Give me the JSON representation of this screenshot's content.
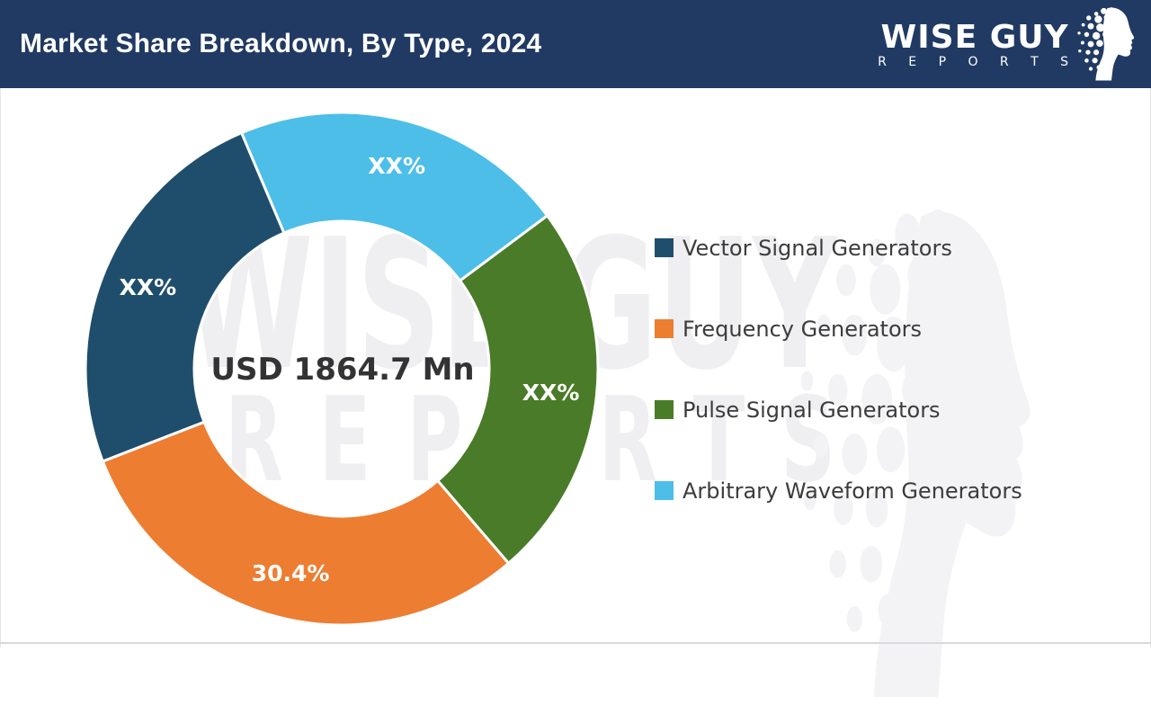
{
  "header": {
    "title": "Market Share Breakdown, By Type, 2024",
    "logo": {
      "line1": "WISE GUY",
      "line2": "R E P O R T S"
    }
  },
  "chart_data": {
    "type": "pie",
    "subtype": "donut",
    "title": "Market Share Breakdown, By Type, 2024",
    "center_label": "USD 1864.7 Mn",
    "start_angle_deg": 113,
    "direction": "counterclockwise",
    "legend_position": "right",
    "segments": [
      {
        "name": "Vector Signal Generators",
        "display_label": "XX%",
        "percent_est": 24.5,
        "color": "#1F4E6D"
      },
      {
        "name": "Frequency Generators",
        "display_label": "30.4%",
        "percent_est": 30.4,
        "color": "#ED7D31"
      },
      {
        "name": "Pulse Signal Generators",
        "display_label": "XX%",
        "percent_est": 23.9,
        "color": "#4A7B28"
      },
      {
        "name": "Arbitrary Waveform Generators",
        "display_label": "XX%",
        "percent_est": 21.2,
        "color": "#4DBEE8"
      }
    ]
  },
  "watermark": {
    "line1": "WISE GUY",
    "line2": "R E P O R T S"
  },
  "colors": {
    "header_background": "#213A63",
    "center_text": "#333333",
    "slice_label_text": "#FFFFFF",
    "legend_text": "#3C3C3C",
    "watermark": "#EFEFF1",
    "bottom_divider": "#D9D9DD"
  }
}
